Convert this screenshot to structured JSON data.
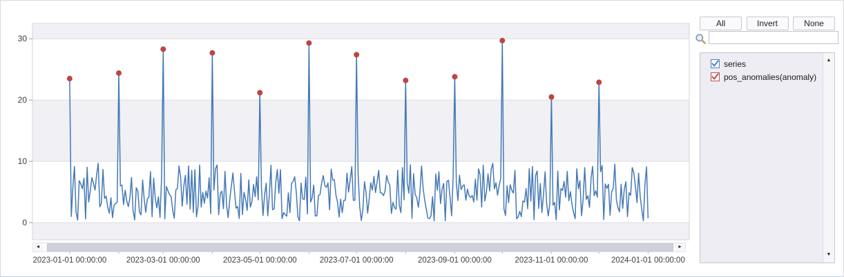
{
  "window": {
    "background": "#ffffff",
    "border_color": "#d9d9de",
    "bottom_border_color": "#bed2e8"
  },
  "toolbar": {
    "all_label": "All",
    "invert_label": "Invert",
    "none_label": "None"
  },
  "search": {
    "value": "",
    "placeholder": "",
    "icon": "magnifier-icon"
  },
  "legend": {
    "items": [
      {
        "label": "series",
        "checked": true,
        "color": "#4a82c8"
      },
      {
        "label": "pos_anomalies(anomaly)",
        "checked": true,
        "color": "#c0504d"
      }
    ],
    "scrollbar": {
      "up_arrow": "▲",
      "down_arrow": "▼"
    }
  },
  "h_scrollbar": {
    "left_arrow": "◄",
    "right_arrow": "►"
  },
  "chart_data": {
    "type": "line",
    "title": "",
    "xlabel": "",
    "ylabel": "",
    "x_is_time": true,
    "x_start_date": "2023-01-01 00:00:00",
    "x_end_date": "2024-01-01 00:00:00",
    "xlim_days": [
      -23.5,
      391
    ],
    "ylim": [
      -2.8,
      32.5
    ],
    "y_ticks": [
      0,
      10,
      20,
      30
    ],
    "x_tick_labels": [
      "2023-01-01 00:00:00",
      "2023-03-01 00:00:00",
      "2023-05-01 00:00:00",
      "2023-07-01 00:00:00",
      "2023-09-01 00:00:00",
      "2023-11-01 00:00:00",
      "2024-01-01 00:00:00"
    ],
    "x_tick_day_offsets": [
      0,
      59,
      120,
      181,
      243,
      304,
      365
    ],
    "x_minor_tick_day_offsets": [
      0,
      31,
      59,
      90,
      120,
      151,
      181,
      212,
      243,
      273,
      304,
      334,
      365
    ],
    "bands": {
      "fill": "#f0f0f5",
      "value_ranges": [
        [
          -2.8,
          0
        ],
        [
          10,
          20
        ],
        [
          30,
          32.5
        ]
      ]
    },
    "grid_color": "#dcdce4",
    "plot_border_color": "#d6d6de",
    "axis_text_color": "#3c3c3c",
    "series": [
      {
        "name": "series",
        "render": "line",
        "color": "#4478b5",
        "frequency": "daily",
        "first_day": 0,
        "last_day": 365,
        "noise_min": 0.3,
        "noise_max": 9.7,
        "noise_seed": 12,
        "last_value": 0.8
      },
      {
        "name": "pos_anomalies(anomaly)",
        "render": "scatter",
        "color": "#bc4643",
        "marker_radius": 4,
        "points": [
          {
            "date": "2023-01-01",
            "day": 0,
            "value": 23.5
          },
          {
            "date": "2023-02-01",
            "day": 31,
            "value": 24.4
          },
          {
            "date": "2023-03-01",
            "day": 59,
            "value": 28.3
          },
          {
            "date": "2023-04-01",
            "day": 90,
            "value": 27.7
          },
          {
            "date": "2023-05-01",
            "day": 120,
            "value": 21.2
          },
          {
            "date": "2023-06-01",
            "day": 151,
            "value": 29.3
          },
          {
            "date": "2023-07-01",
            "day": 181,
            "value": 27.4
          },
          {
            "date": "2023-08-01",
            "day": 212,
            "value": 23.2
          },
          {
            "date": "2023-09-01",
            "day": 243,
            "value": 23.8
          },
          {
            "date": "2023-10-01",
            "day": 273,
            "value": 29.7
          },
          {
            "date": "2023-11-01",
            "day": 304,
            "value": 20.5
          },
          {
            "date": "2023-12-01",
            "day": 334,
            "value": 22.9
          }
        ]
      }
    ]
  }
}
